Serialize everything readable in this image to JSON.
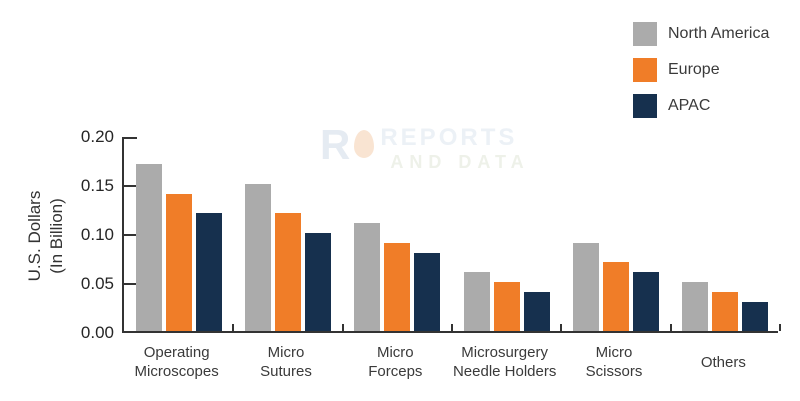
{
  "watermark": {
    "logo_letter": "R",
    "line1": "REPORTS",
    "line2": "AND DATA"
  },
  "legend": {
    "position": "top-right",
    "items": [
      {
        "label": "North America",
        "color": "#ababab"
      },
      {
        "label": "Europe",
        "color": "#f07d28"
      },
      {
        "label": "APAC",
        "color": "#16304e"
      }
    ]
  },
  "y_axis": {
    "title": "U.S. Dollars\n(In Billion)",
    "tick_labels": [
      "0.20",
      "0.15",
      "0.10",
      "0.05",
      "0.00"
    ]
  },
  "chart_data": {
    "type": "bar",
    "title": "",
    "xlabel": "",
    "ylabel": "U.S. Dollars (In Billion)",
    "ylim": [
      0,
      0.2
    ],
    "yticks": [
      0.0,
      0.05,
      0.1,
      0.15,
      0.2
    ],
    "grid": false,
    "legend_position": "top-right",
    "categories": [
      "Operating\nMicroscopes",
      "Micro\nSutures",
      "Micro\nForceps",
      "Microsurgery\nNeedle Holders",
      "Micro\nScissors",
      "Others"
    ],
    "series": [
      {
        "name": "North America",
        "color": "#ababab",
        "values": [
          0.17,
          0.15,
          0.11,
          0.06,
          0.09,
          0.05
        ]
      },
      {
        "name": "Europe",
        "color": "#f07d28",
        "values": [
          0.14,
          0.12,
          0.09,
          0.05,
          0.07,
          0.04
        ]
      },
      {
        "name": "APAC",
        "color": "#16304e",
        "values": [
          0.12,
          0.1,
          0.08,
          0.04,
          0.06,
          0.03
        ]
      }
    ]
  }
}
